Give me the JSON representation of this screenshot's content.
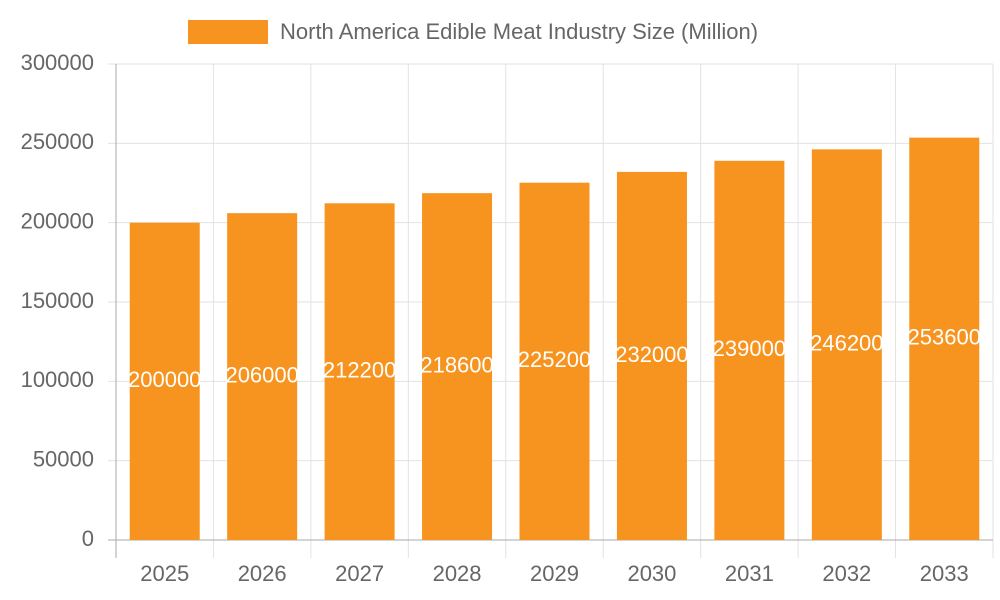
{
  "chart_data": {
    "type": "bar",
    "categories": [
      "2025",
      "2026",
      "2027",
      "2028",
      "2029",
      "2030",
      "2031",
      "2032",
      "2033"
    ],
    "series": [
      {
        "name": "North America Edible Meat Industry Size (Million)",
        "color": "#f7941f",
        "values": [
          200000,
          206000,
          212200,
          218600,
          225200,
          232000,
          239000,
          246200,
          253600
        ]
      }
    ],
    "ylim": [
      0,
      300000
    ],
    "yticks": [
      0,
      50000,
      100000,
      150000,
      200000,
      250000,
      300000
    ],
    "grid": true,
    "data_labels": true,
    "legend": "top"
  }
}
